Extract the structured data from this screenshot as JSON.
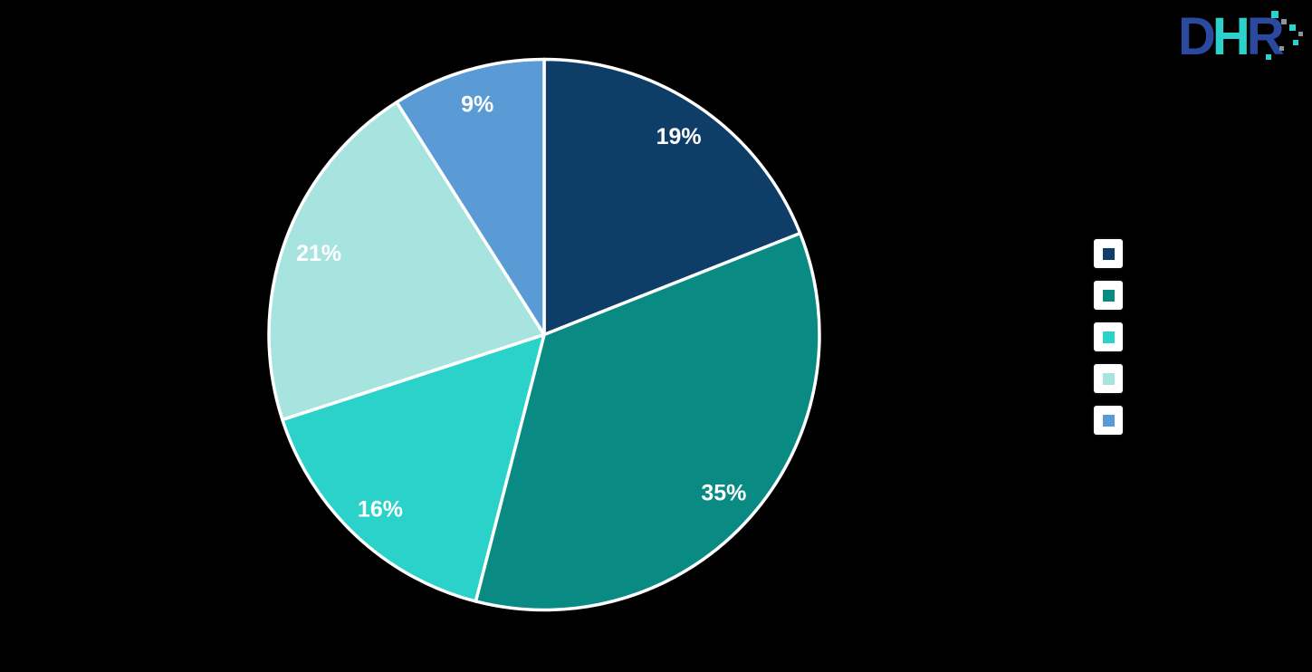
{
  "page": {
    "background_color": "#000000"
  },
  "logo": {
    "text": "DHR",
    "letters": [
      {
        "char": "D"
      },
      {
        "char": "H"
      },
      {
        "char": "R"
      }
    ],
    "primary_color": "#2b4a9f",
    "accent_color": "#2bd2cc",
    "dot_gray_color": "#8d949c"
  },
  "chart_data": {
    "type": "pie",
    "slices": [
      {
        "label": "19%",
        "value": 19,
        "color": "#0e3e68"
      },
      {
        "label": "35%",
        "value": 35,
        "color": "#098a83"
      },
      {
        "label": "16%",
        "value": 16,
        "color": "#2ad2ca"
      },
      {
        "label": "21%",
        "value": 21,
        "color": "#a7e4e0"
      },
      {
        "label": "9%",
        "value": 9,
        "color": "#5b9bd5"
      }
    ],
    "start_angle_deg": 0,
    "direction": "clockwise",
    "slice_separator_color": "#ffffff",
    "outer_outline_color": "#ffffff",
    "data_label_color": "#ffffff",
    "legend": {
      "position": "right",
      "labels_visible": false,
      "items": [
        {
          "swatch_color": "#0e3e68"
        },
        {
          "swatch_color": "#098a83"
        },
        {
          "swatch_color": "#2ad2ca"
        },
        {
          "swatch_color": "#a7e4e0"
        },
        {
          "swatch_color": "#5b9bd5"
        }
      ]
    }
  }
}
